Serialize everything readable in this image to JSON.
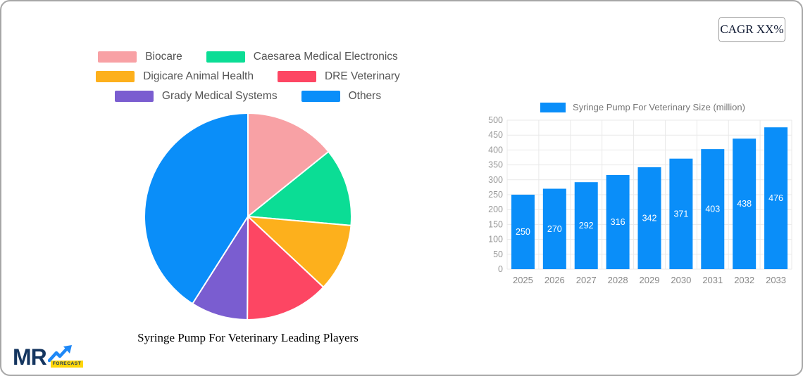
{
  "page": {
    "cagr_badge": "CAGR XX%"
  },
  "logo": {
    "mr": "MR",
    "forecast": "FORECAST"
  },
  "chart_data": [
    {
      "id": "leading-players-pie",
      "type": "pie",
      "title": "Syringe Pump For Veterinary Leading Players",
      "labels": [
        "Biocare",
        "Caesarea Medical Electronics",
        "Digicare Animal Health",
        "DRE Veterinary",
        "Grady Medical Systems",
        "Others"
      ],
      "values": [
        14.2,
        12.2,
        10.6,
        13.1,
        8.9,
        41.0
      ],
      "colors": [
        "#f8a1a5",
        "#0bdd95",
        "#fdb01c",
        "#fd4663",
        "#7a5dd0",
        "#0a8ef9"
      ],
      "legend_position": "top-center",
      "start_angle_deg": 0,
      "clockwise": true,
      "slice_border_color": "#ffffff"
    },
    {
      "id": "market-size-bar",
      "type": "bar",
      "legend": "Syringe Pump For Veterinary Size (million)",
      "categories": [
        "2025",
        "2026",
        "2027",
        "2028",
        "2029",
        "2030",
        "2031",
        "2032",
        "2033"
      ],
      "values": [
        250,
        270,
        292,
        316,
        342,
        371,
        403,
        438,
        476
      ],
      "ylim": [
        0,
        500
      ],
      "ytick_step": 50,
      "bar_color": "#0a8ef9",
      "value_label_color": "#ffffff",
      "grid": true,
      "legend_position": "top-center"
    }
  ]
}
